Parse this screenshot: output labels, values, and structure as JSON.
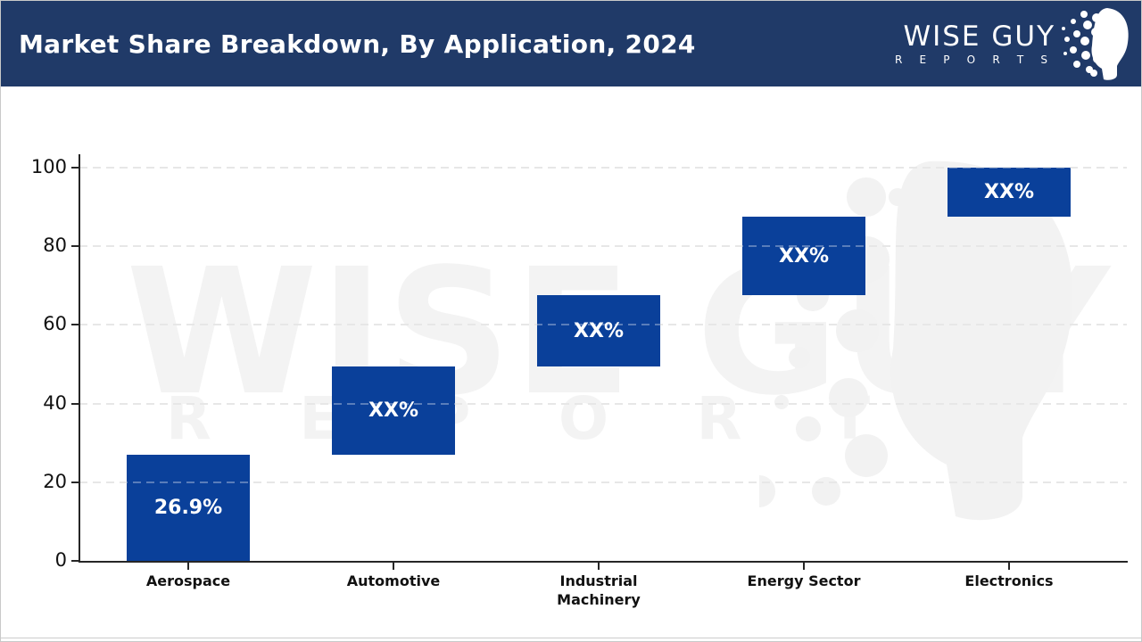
{
  "header": {
    "title": "Market Share Breakdown, By Application, 2024",
    "logo": {
      "line1": "WISE GUY",
      "line2": "REPORTS"
    }
  },
  "watermark": {
    "line1": "WISE GUY",
    "line2": "REPORTS"
  },
  "chart_data": {
    "type": "bar",
    "variant": "waterfall",
    "title": "Market Share Breakdown, By Application, 2024",
    "categories": [
      "Aerospace",
      "Automotive",
      "Industrial Machinery",
      "Energy Sector",
      "Electronics"
    ],
    "segments": [
      {
        "category": "Aerospace",
        "start": 0,
        "end": 26.9,
        "label": "26.9%"
      },
      {
        "category": "Automotive",
        "start": 26.9,
        "end": 49.5,
        "label": "XX%"
      },
      {
        "category": "Industrial Machinery",
        "start": 49.5,
        "end": 67.5,
        "label": "XX%"
      },
      {
        "category": "Energy Sector",
        "start": 67.5,
        "end": 87.5,
        "label": "XX%"
      },
      {
        "category": "Electronics",
        "start": 87.5,
        "end": 100,
        "label": "XX%"
      }
    ],
    "yticks": [
      0,
      20,
      40,
      60,
      80,
      100
    ],
    "ylim": [
      0,
      103
    ],
    "xlabel": "",
    "ylabel": "",
    "grid": {
      "horizontal": true,
      "style": "dashed"
    },
    "legend": "none",
    "colors": {
      "bar": "#0a409a",
      "bar_label": "#ffffff",
      "header_bg": "#203a68",
      "axis": "#262626",
      "gridline": "#dcdcdc",
      "watermark": "#f3f3f3"
    }
  }
}
